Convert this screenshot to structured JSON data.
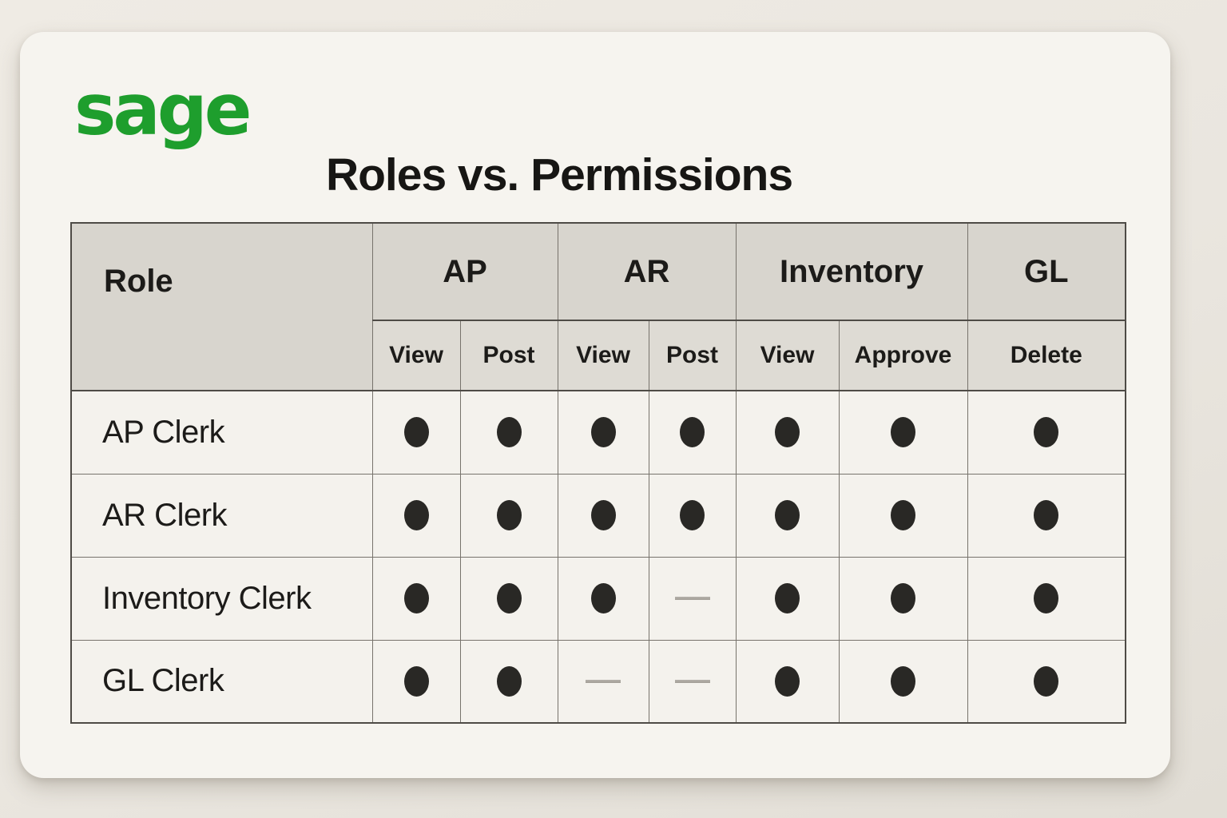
{
  "brand": {
    "logo_text": "sage",
    "logo_color": "#1e9e2d"
  },
  "title": "Roles vs. Permissions",
  "table": {
    "role_header": "Role",
    "groups": [
      {
        "label": "AP",
        "span": 2
      },
      {
        "label": "AR",
        "span": 2
      },
      {
        "label": "Inventory",
        "span": 2
      },
      {
        "label": "GL",
        "span": 1
      }
    ],
    "permissions": [
      "View",
      "Post",
      "View",
      "Post",
      "View",
      "Approve",
      "Delete"
    ],
    "rows": [
      {
        "role": "AP Clerk",
        "cells": [
          "dot",
          "dot",
          "dot",
          "dot",
          "dot",
          "dot",
          "dot"
        ]
      },
      {
        "role": "AR Clerk",
        "cells": [
          "dot",
          "dot",
          "dot",
          "dot",
          "dot",
          "dot",
          "dot"
        ]
      },
      {
        "role": "Inventory Clerk",
        "cells": [
          "dot",
          "dot",
          "dot",
          "dash",
          "dot",
          "dot",
          "dot"
        ]
      },
      {
        "role": "GL Clerk",
        "cells": [
          "dot",
          "dot",
          "dash",
          "dash",
          "dot",
          "dot",
          "dot"
        ]
      }
    ]
  },
  "colors": {
    "page_bg": "#e9e5de",
    "card_bg": "#f6f4ef",
    "header_bg": "#d8d5ce",
    "subheader_bg": "#dedbd4",
    "row_bg": "#f4f2ed",
    "border": "#77736c",
    "border_heavy": "#4e4b46",
    "title_text": "#171614",
    "dot": "#292825",
    "dash": "#a39f98",
    "logo_green": "#1e9e2d"
  }
}
